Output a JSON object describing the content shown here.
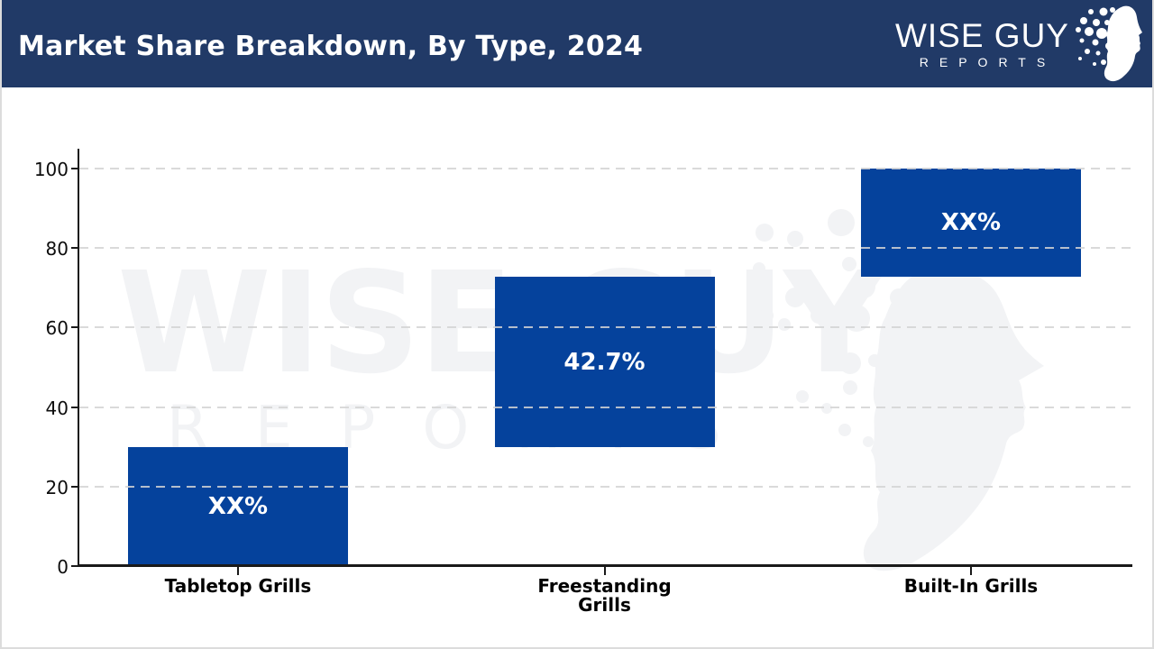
{
  "header": {
    "title": "Market Share Breakdown, By Type, 2024",
    "bg_color": "#213A67",
    "logo": {
      "line1": "WISE GUY",
      "line2": "REPORTS"
    }
  },
  "watermark": {
    "line1": "WISE GUY",
    "line2": "REPORTS"
  },
  "chart_data": {
    "type": "bar",
    "subtype": "floating-segment-bars (stacked percentage breakdown)",
    "title": "Market Share Breakdown, By Type, 2024",
    "categories": [
      "Tabletop Grills",
      "Freestanding Grills",
      "Built-In Grills"
    ],
    "series": [
      {
        "name": "Tabletop Grills",
        "start": 0,
        "end": 30,
        "value_estimate": 30,
        "label": "XX%"
      },
      {
        "name": "Freestanding Grills",
        "start": 30,
        "end": 72.7,
        "value_estimate": 42.7,
        "label": "42.7%"
      },
      {
        "name": "Built-In Grills",
        "start": 72.7,
        "end": 100,
        "value_estimate": 27.3,
        "label": "XX%"
      }
    ],
    "xlabel": "",
    "ylabel": "",
    "yticks": [
      0,
      20,
      40,
      60,
      80,
      100
    ],
    "ylim": [
      0,
      105
    ],
    "grid": "horizontal dashed, drawn above bars",
    "gridline_color": "#d4d4d4",
    "bar_color": "#05429C",
    "bar_label_color": "#FFFFFF",
    "axis_color": "#1a1a1a",
    "legend": "none"
  }
}
